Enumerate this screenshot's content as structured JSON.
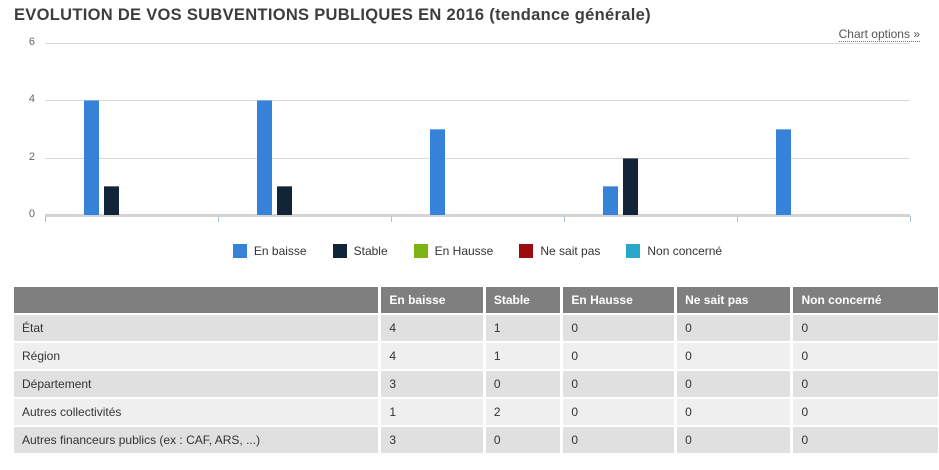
{
  "header": {
    "title": "EVOLUTION DE VOS SUBVENTIONS PUBLIQUES EN 2016 (tendance générale)",
    "chart_options_label": "Chart options »"
  },
  "chart_data": {
    "type": "bar",
    "title": "",
    "xlabel": "",
    "ylabel": "",
    "ylim": [
      0,
      6
    ],
    "yticks": [
      0,
      2,
      4,
      6
    ],
    "grid": true,
    "legend_position": "bottom",
    "categories": [
      "État",
      "Région",
      "Département",
      "Autres collectivités",
      "Autres financeurs publics (ex : CAF, ARS, ...)"
    ],
    "series": [
      {
        "name": "En baisse",
        "color": "#3582d8",
        "values": [
          4,
          4,
          3,
          1,
          3
        ]
      },
      {
        "name": "Stable",
        "color": "#122438",
        "values": [
          1,
          1,
          0,
          2,
          0
        ]
      },
      {
        "name": "En Hausse",
        "color": "#7db414",
        "values": [
          0,
          0,
          0,
          0,
          0
        ]
      },
      {
        "name": "Ne sait pas",
        "color": "#9e0b0f",
        "values": [
          0,
          0,
          0,
          0,
          0
        ]
      },
      {
        "name": "Non concerné",
        "color": "#29a9c7",
        "values": [
          0,
          0,
          0,
          0,
          0
        ]
      }
    ]
  },
  "table": {
    "columns": [
      "",
      "En baisse",
      "Stable",
      "En Hausse",
      "Ne sait pas",
      "Non concerné"
    ],
    "column_widths_pct": [
      39.6,
      11.3,
      8.4,
      12.3,
      12.6,
      15.8
    ],
    "rows": [
      {
        "label": "État",
        "values": [
          4,
          1,
          0,
          0,
          0
        ]
      },
      {
        "label": "Région",
        "values": [
          4,
          1,
          0,
          0,
          0
        ]
      },
      {
        "label": "Département",
        "values": [
          3,
          0,
          0,
          0,
          0
        ]
      },
      {
        "label": "Autres collectivités",
        "values": [
          1,
          2,
          0,
          0,
          0
        ]
      },
      {
        "label": "Autres financeurs publics (ex : CAF, ARS, ...)",
        "values": [
          3,
          0,
          0,
          0,
          0
        ]
      }
    ]
  },
  "colors": {
    "title_text": "#3d3d3d",
    "axis_label": "#666666",
    "gridline": "#d8d8d8",
    "axis_baseline": "#d4d4d4",
    "xtick": "#abc4dc",
    "table_header_bg": "#7f7f7f",
    "table_header_text": "#ffffff",
    "row_odd_bg": "#e0e0e0",
    "row_even_bg": "#efefef"
  }
}
